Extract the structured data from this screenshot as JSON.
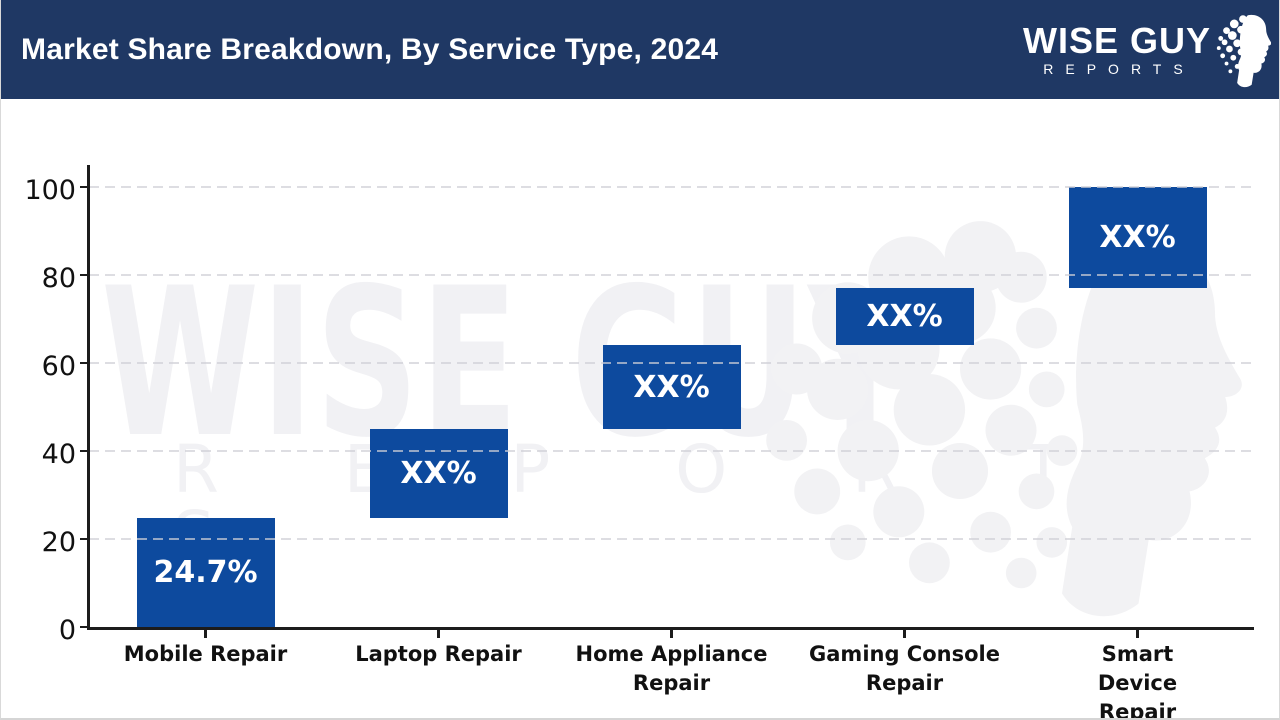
{
  "header": {
    "title": "Market Share Breakdown, By Service Type, 2024",
    "logo": {
      "brand": "WISE GUY",
      "sub": "REPORTS"
    }
  },
  "watermark": {
    "brand": "WISE GUY",
    "sub": "R E P O R T S"
  },
  "chart_data": {
    "type": "bar",
    "variant": "waterfall",
    "title": "Market Share Breakdown, By Service Type, 2024",
    "xlabel": "",
    "ylabel": "",
    "categories": [
      "Mobile Repair",
      "Laptop Repair",
      "Home Appliance\nRepair",
      "Gaming Console\nRepair",
      "Smart Device\nRepair"
    ],
    "segments": [
      {
        "category": "Mobile Repair",
        "start": 0,
        "end": 24.7,
        "label": "24.7%"
      },
      {
        "category": "Laptop Repair",
        "start": 24.7,
        "end": 45,
        "label": "XX%"
      },
      {
        "category": "Home Appliance Repair",
        "start": 45,
        "end": 64,
        "label": "XX%"
      },
      {
        "category": "Gaming Console Repair",
        "start": 64,
        "end": 77,
        "label": "XX%"
      },
      {
        "category": "Smart Device Repair",
        "start": 77,
        "end": 100,
        "label": "XX%"
      }
    ],
    "yticks": [
      0,
      20,
      40,
      60,
      80,
      100
    ],
    "ylim": [
      0,
      105
    ],
    "grid": {
      "axis": "y",
      "style": "dashed",
      "over_bars": true
    },
    "legend": "none",
    "bar_color": "#0d4a9e",
    "bar_label_color": "#ffffff"
  },
  "colors": {
    "header_bg": "#1f3864",
    "bar": "#0d4a9e",
    "grid": "#d9d9de",
    "axis": "#1c1c1c",
    "text": "#111111",
    "watermark": "#f1f1f4"
  }
}
